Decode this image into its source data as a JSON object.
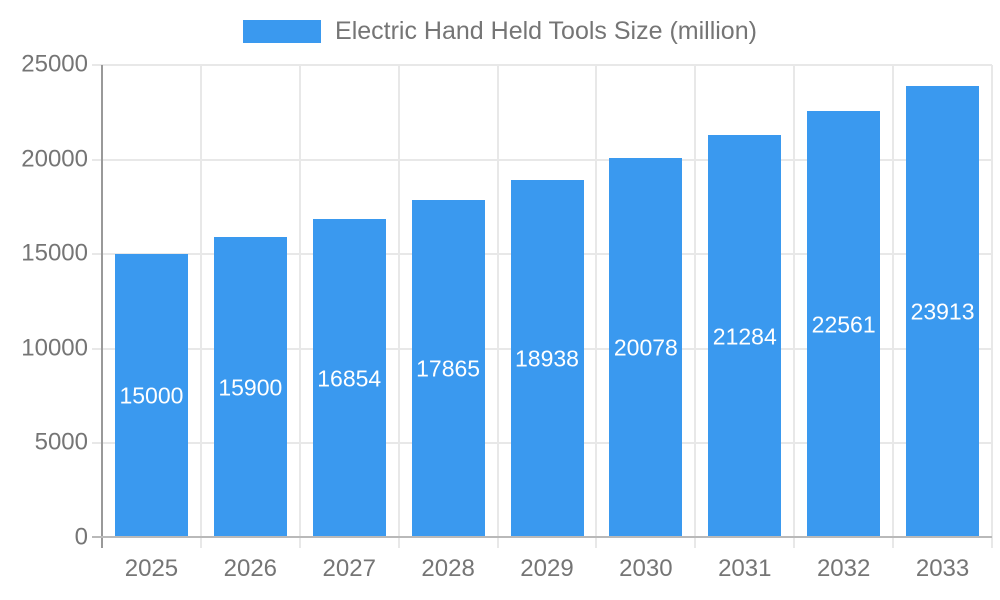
{
  "chart_data": {
    "type": "bar",
    "title": "Electric Hand Held Tools Size (million)",
    "categories": [
      "2025",
      "2026",
      "2027",
      "2028",
      "2029",
      "2030",
      "2031",
      "2032",
      "2033"
    ],
    "values": [
      15000,
      15900,
      16854,
      17865,
      18938,
      20078,
      21284,
      22561,
      23913
    ],
    "value_labels": [
      "15000",
      "15900",
      "16854",
      "17865",
      "18938",
      "20078",
      "21284",
      "22561",
      "23913"
    ],
    "yticks": [
      0,
      5000,
      10000,
      15000,
      20000,
      25000
    ],
    "ytick_labels": [
      "0",
      "5000",
      "10000",
      "15000",
      "20000",
      "25000"
    ],
    "ylim": [
      0,
      25000
    ],
    "xlabel": "",
    "ylabel": "",
    "grid": true,
    "legend_position": "top-center",
    "bar_color": "#3A99EF",
    "value_label_color": "#ffffff",
    "axis_text_color": "#757575"
  }
}
